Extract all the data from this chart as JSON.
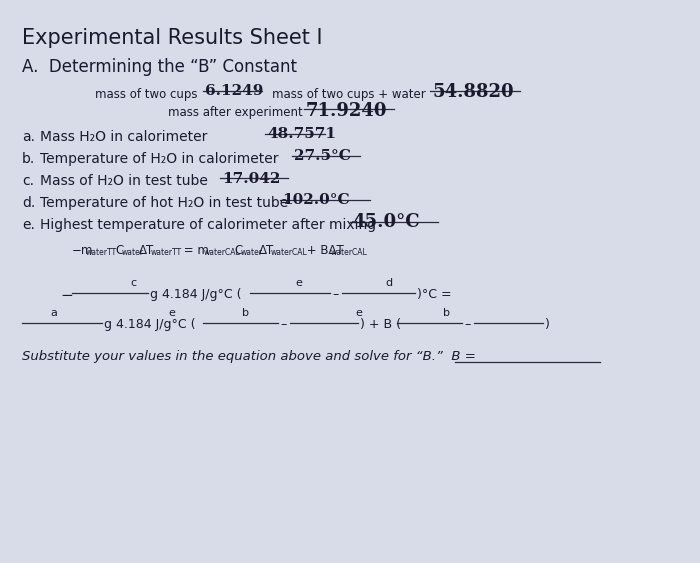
{
  "background_color": "#d8dce8",
  "text_color": "#1a1a2e",
  "title": "Experimental Results Sheet I",
  "section": "A.  Determining the “B” Constant",
  "cups_label": "mass of two cups",
  "cups_val": "6.1249",
  "cups_water_label": "mass of two cups + water",
  "cups_water_val": "54.8820",
  "after_label": "mass after experiment",
  "after_val": "71.9240",
  "items": [
    {
      "letter": "a.",
      "label": "Mass H₂O in calorimeter",
      "val": "48.7571"
    },
    {
      "letter": "b.",
      "label": "Temperature of H₂O in calorimeter",
      "val": "27.5°C"
    },
    {
      "letter": "c.",
      "label": "Mass of H₂O in test tube",
      "val": "17.042"
    },
    {
      "letter": "d.",
      "label": "Temperature of hot H₂O in test tube",
      "val": "102.0°C"
    },
    {
      "letter": "e.",
      "label": "Highest temperature of calorimeter after mixing",
      "val": "45.0°C"
    }
  ]
}
